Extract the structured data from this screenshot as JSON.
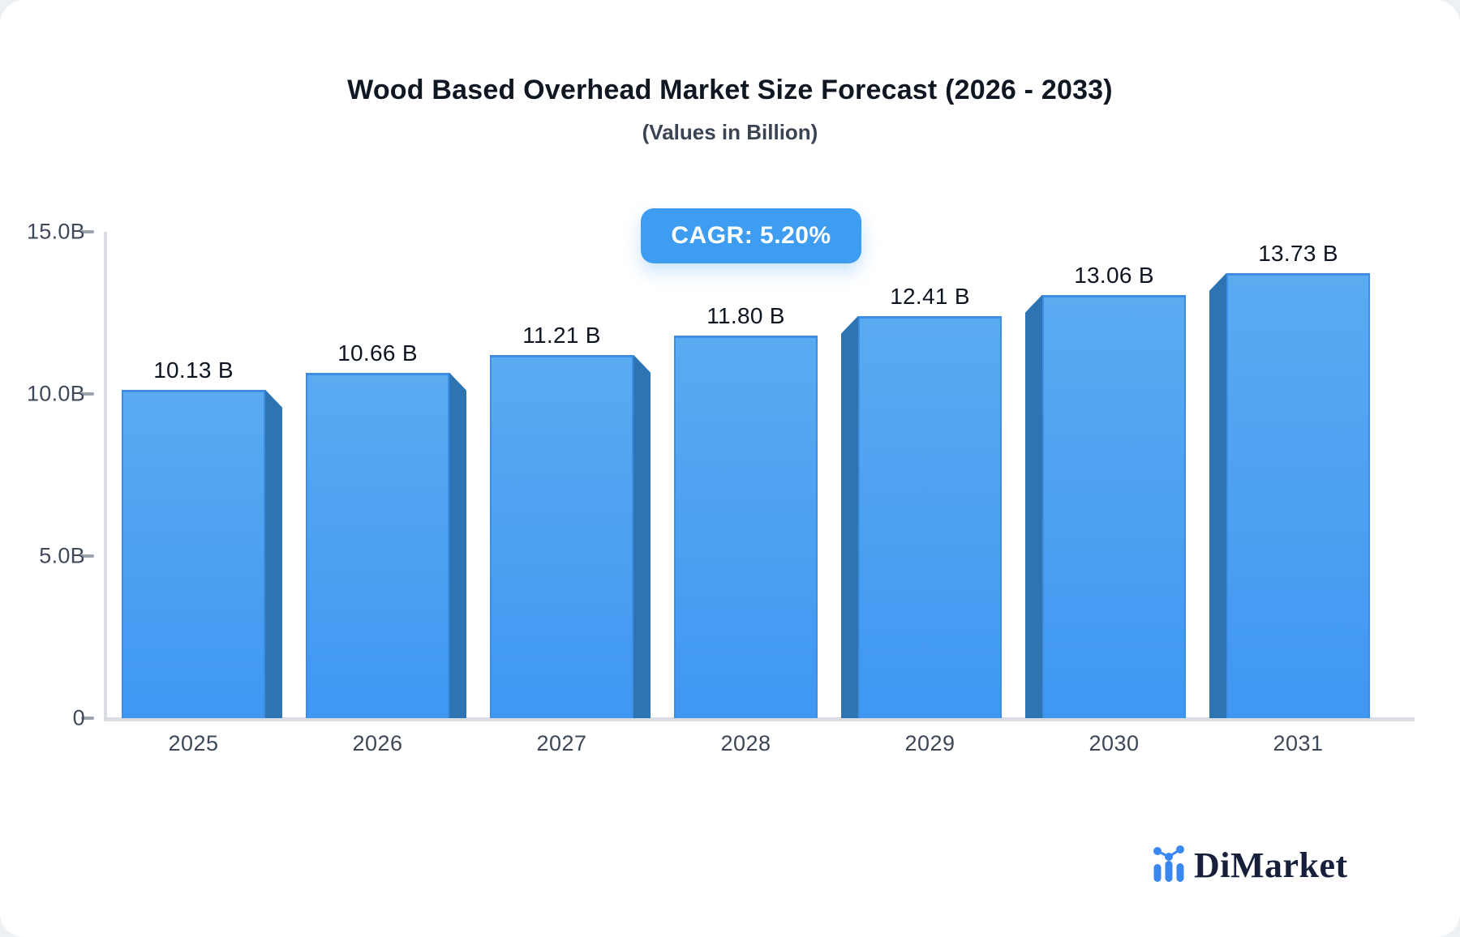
{
  "header": {
    "title": "Wood Based Overhead Market Size Forecast (2026 - 2033)",
    "subtitle": "(Values in Billion)"
  },
  "badge": {
    "label": "CAGR: 5.20%",
    "background": "#3f9df1",
    "text_color": "#ffffff"
  },
  "chart_data": {
    "type": "bar",
    "title": "Wood Based Overhead Market Size Forecast (2026 - 2033)",
    "subtitle": "(Values in Billion)",
    "categories": [
      "2025",
      "2026",
      "2027",
      "2028",
      "2029",
      "2030",
      "2031"
    ],
    "values": [
      10.13,
      10.66,
      11.21,
      11.8,
      12.41,
      13.06,
      13.73
    ],
    "bar_labels": [
      "10.13 B",
      "10.66 B",
      "11.21 B",
      "11.80 B",
      "12.41 B",
      "13.06 B",
      "13.73 B"
    ],
    "annotation": "CAGR: 5.20%",
    "unit": "Billion",
    "ylim": [
      0,
      15
    ],
    "yticks": [
      {
        "label": "15.0B",
        "value": 15
      },
      {
        "label": "10.0B",
        "value": 10
      },
      {
        "label": "5.0B",
        "value": 5
      },
      {
        "label": "0",
        "value": 0
      }
    ],
    "grid": false,
    "legend": false,
    "bar_color_top": "#5aabf0",
    "bar_color_bottom": "#3f97f2",
    "bar_edge_color": "#3d8ee2",
    "bar_side_color": "#2e74b3",
    "axis_color": "#d9dce0",
    "tick_color": "#9aa3ac"
  },
  "logo": {
    "text": "DiMarket",
    "icon": "mini-bar-chart-icon",
    "icon_color": "#3b87f0",
    "text_color": "#16203a"
  }
}
